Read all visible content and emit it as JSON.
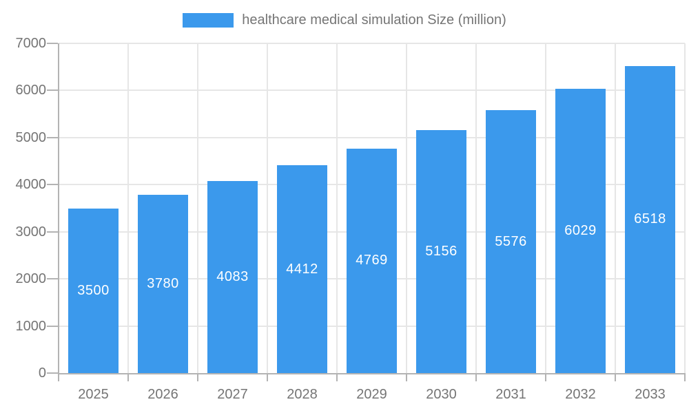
{
  "chart_data": {
    "type": "bar",
    "title": "",
    "series_name": "healthcare medical simulation Size (million)",
    "categories": [
      "2025",
      "2026",
      "2027",
      "2028",
      "2029",
      "2030",
      "2031",
      "2032",
      "2033"
    ],
    "values": [
      3500,
      3780,
      4083,
      4412,
      4769,
      5156,
      5576,
      6029,
      6518
    ],
    "xlabel": "",
    "ylabel": "",
    "ylim": [
      0,
      7000
    ],
    "yticks": [
      0,
      1000,
      2000,
      3000,
      4000,
      5000,
      6000,
      7000
    ],
    "grid": "on",
    "legend_position": "top",
    "value_label_position": "inside-center",
    "colors": {
      "bar": "#3b99ec",
      "value_label_text": "#ffffff",
      "axis_text": "#757575",
      "legend_text": "#757575",
      "gridline": "#e6e6e6",
      "axis_line": "#b3b3b3"
    }
  }
}
